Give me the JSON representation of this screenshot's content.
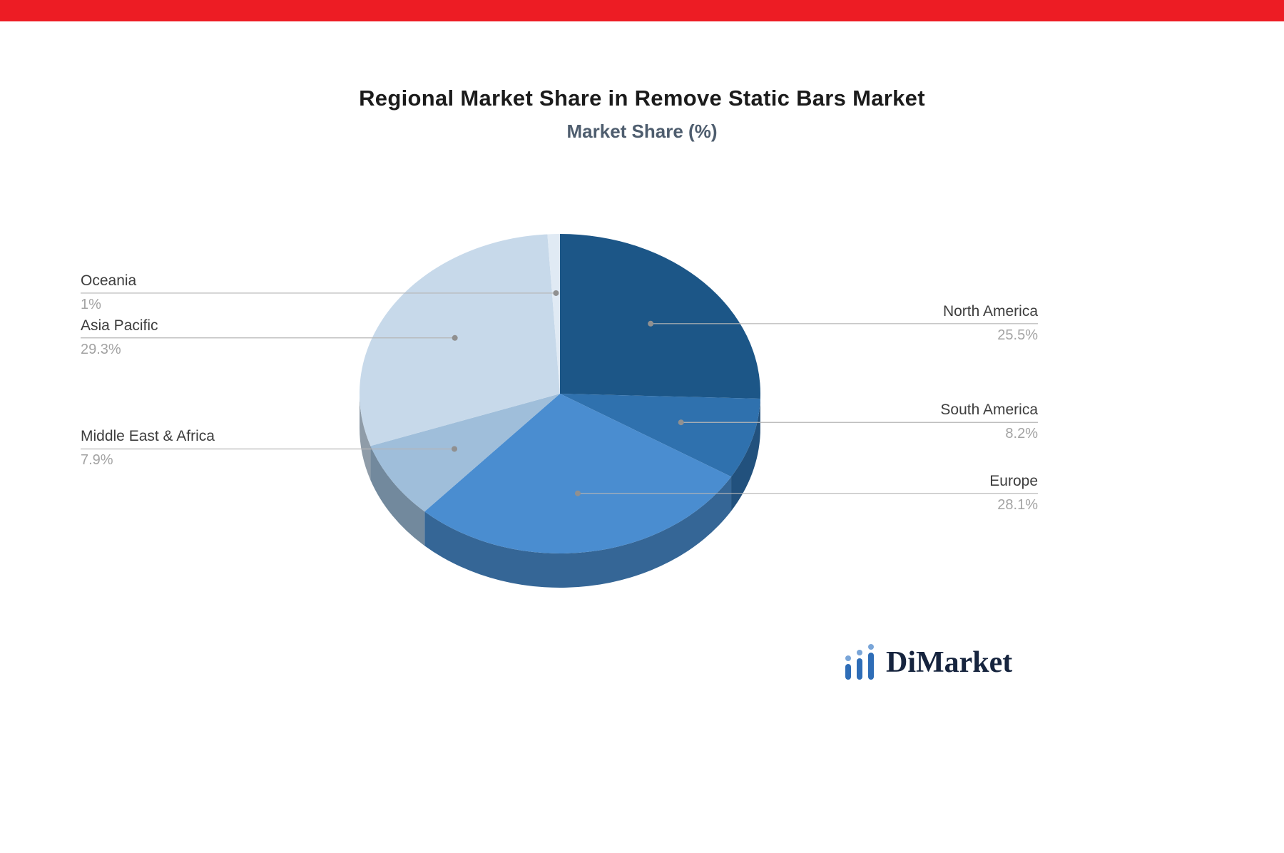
{
  "page": {
    "top_bar_color": "#ed1c24",
    "background": "#ffffff"
  },
  "chart_data": {
    "type": "pie",
    "title": "Regional Market Share in Remove Static Bars Market",
    "subtitle": "Market Share (%)",
    "unit": "%",
    "style": "3d-pie",
    "legend_position": "none",
    "labels": "leader-lines",
    "slices": [
      {
        "label": "North America",
        "value": 25.5,
        "display": "25.5%",
        "color": "#1c5687"
      },
      {
        "label": "South America",
        "value": 8.2,
        "display": "8.2%",
        "color": "#2f71ae"
      },
      {
        "label": "Europe",
        "value": 28.1,
        "display": "28.1%",
        "color": "#4a8dd0"
      },
      {
        "label": "Middle East & Africa",
        "value": 7.9,
        "display": "7.9%",
        "color": "#9fbeda"
      },
      {
        "label": "Asia Pacific",
        "value": 29.3,
        "display": "29.3%",
        "color": "#c7d9ea"
      },
      {
        "label": "Oceania",
        "value": 1,
        "display": "1%",
        "color": "#e0eaf4"
      }
    ]
  },
  "branding": {
    "logo_text": "DiMarket",
    "logo_icon": "bar-chart-icon",
    "logo_text_color": "#16243e",
    "icon_bar_color": "#2e6db7",
    "icon_dot_color": "#79a5d8"
  }
}
